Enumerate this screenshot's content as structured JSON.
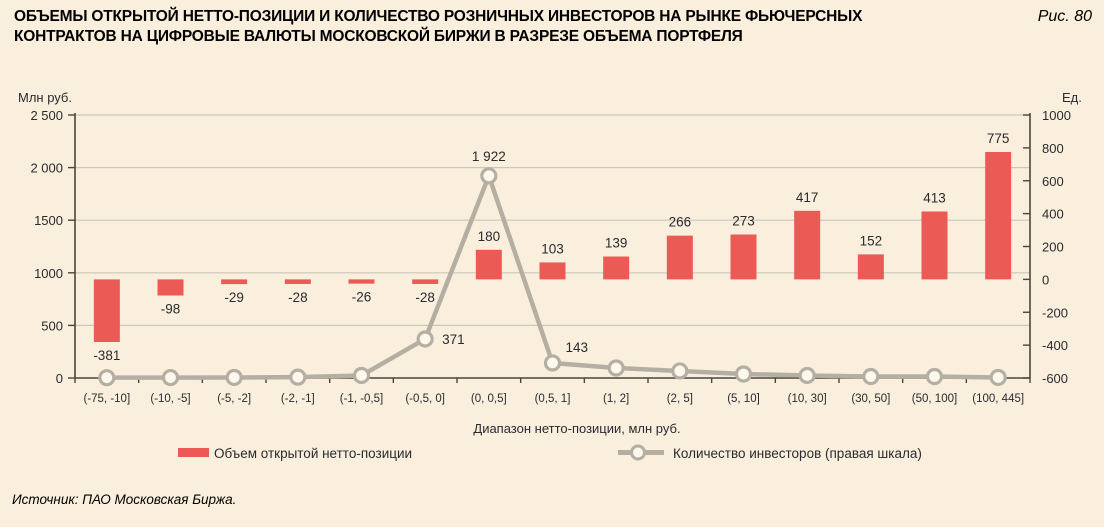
{
  "figure": {
    "title_line1": "ОБЪЕМЫ ОТКРЫТОЙ НЕТТО-ПОЗИЦИИ И КОЛИЧЕСТВО РОЗНИЧНЫХ ИНВЕСТОРОВ НА РЫНКЕ ФЬЮЧЕРСНЫХ",
    "title_line2": "КОНТРАКТОВ НА ЦИФРОВЫЕ ВАЛЮТЫ МОСКОВСКОЙ БИРЖИ В РАЗРЕЗЕ ОБЪЕМА ПОРТФЕЛЯ",
    "figure_label": "Рис. 80",
    "source": "Источник: ПАО Московская Биржа."
  },
  "colors": {
    "background": "#f9efdc",
    "bar": "#ec5a55",
    "line": "#b5afa3",
    "marker_fill": "#fdf8ec",
    "grid": "#cdc7b8",
    "axis": "#4a453c",
    "text": "#2a2a30"
  },
  "chart_data": {
    "type": "bar",
    "combo": "bar+line",
    "title": "Объемы открытой нетто-позиции и количество розничных инвесторов на рынке фьючерсных контрактов на цифровые валюты Московской биржи в разрезе объема портфеля",
    "xlabel": "Диапазон нетто-позиции, млн руб.",
    "grid": "horizontal",
    "legend_position": "bottom",
    "categories": [
      "(-75, -10]",
      "(-10, -5]",
      "(-5, -2]",
      "(-2, -1]",
      "(-1, -0,5]",
      "(-0,5, 0]",
      "(0, 0,5]",
      "(0,5, 1]",
      "(1, 2]",
      "(2, 5]",
      "(5, 10]",
      "(10, 30]",
      "(30, 50]",
      "(50, 100]",
      "(100, 445]"
    ],
    "series": [
      {
        "name": "Объем открытой нетто-позиции",
        "type": "bar",
        "values": [
          -381,
          -98,
          -29,
          -28,
          -26,
          -28,
          180,
          103,
          139,
          266,
          273,
          417,
          152,
          413,
          775
        ],
        "labels": [
          "-381",
          "-98",
          "-29",
          "-28",
          "-26",
          "-28",
          "180",
          "103",
          "139",
          "266",
          "273",
          "417",
          "152",
          "413",
          "775"
        ]
      },
      {
        "name": "Количество инвесторов (правая шкала)",
        "type": "line",
        "values": [
          3,
          4,
          5,
          8,
          24,
          371,
          1922,
          143,
          95,
          67,
          38,
          24,
          14,
          14,
          5
        ],
        "point_labels": [
          {
            "index": 5,
            "text": "371",
            "position": "right"
          },
          {
            "index": 6,
            "text": "1 922",
            "position": "above"
          },
          {
            "index": 7,
            "text": "143",
            "position": "above-right"
          }
        ]
      }
    ],
    "left_axis": {
      "title": "Млн руб.",
      "min": 0,
      "max": 2500,
      "ticks": [
        {
          "v": 2500,
          "label": "2 500"
        },
        {
          "v": 2000,
          "label": "2 000"
        },
        {
          "v": 1500,
          "label": "1500"
        },
        {
          "v": 1000,
          "label": "1000"
        },
        {
          "v": 500,
          "label": "500"
        },
        {
          "v": 0,
          "label": "0"
        }
      ]
    },
    "right_axis": {
      "title": "Ед.",
      "min": -600,
      "max": 1000,
      "ticks": [
        {
          "v": 1000,
          "label": "1000"
        },
        {
          "v": 800,
          "label": "800"
        },
        {
          "v": 600,
          "label": "600"
        },
        {
          "v": 400,
          "label": "400"
        },
        {
          "v": 200,
          "label": "200"
        },
        {
          "v": 0,
          "label": "0"
        },
        {
          "v": -200,
          "label": "-200"
        },
        {
          "v": -400,
          "label": "-400"
        },
        {
          "v": -600,
          "label": "-600"
        }
      ]
    }
  }
}
